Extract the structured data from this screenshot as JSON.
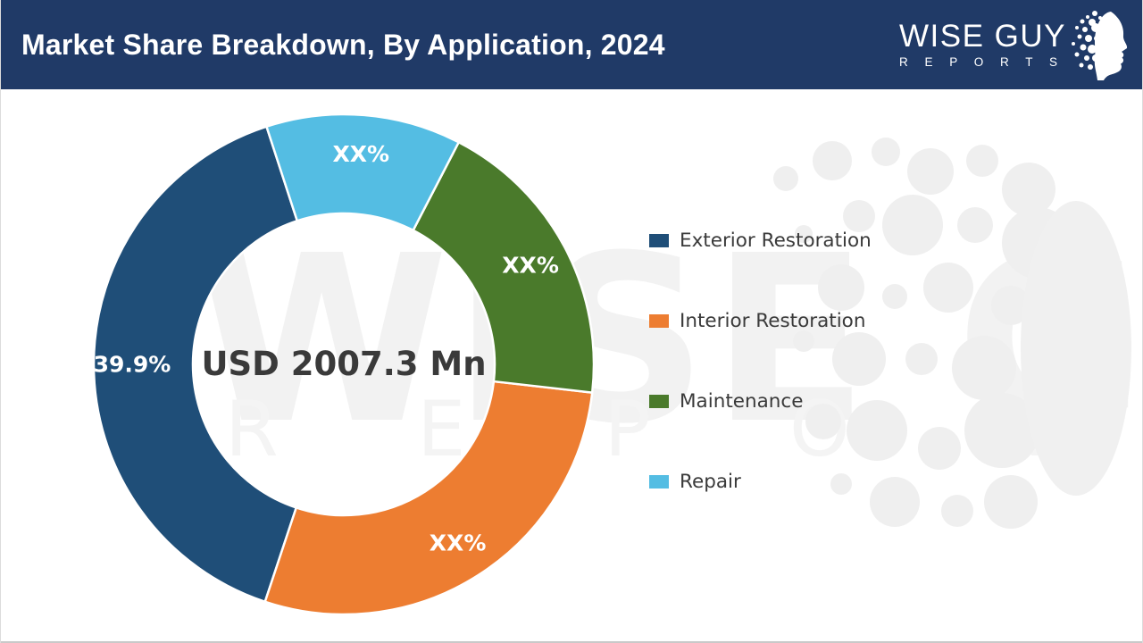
{
  "header": {
    "title": "Market Share Breakdown, By Application, 2024",
    "logo_line1": "WISE GUY",
    "logo_line2": "R E P O R T S"
  },
  "colors": {
    "header_bg": "#203a67",
    "exterior_restoration": "#1f4e78",
    "interior_restoration": "#ed7d31",
    "maintenance": "#4a7a2b",
    "repair": "#54bde3",
    "center_text": "#3a3a3a",
    "slice_label_text": "#ffffff",
    "watermark": "#f2f2f2",
    "bottom_line": "#c9c9c9"
  },
  "chart_data": {
    "type": "pie",
    "subtype": "donut",
    "title": "Market Share Breakdown, By Application, 2024",
    "center_label": "USD 2007.3 Mn",
    "categories": [
      "Exterior Restoration",
      "Interior Restoration",
      "Maintenance",
      "Repair"
    ],
    "values": [
      39.9,
      28.3,
      19.2,
      12.6
    ],
    "value_labels": [
      "39.9%",
      "XX%",
      "XX%",
      "XX%"
    ],
    "colors": [
      "#1f4e78",
      "#ed7d31",
      "#4a7a2b",
      "#54bde3"
    ],
    "start_angle_deg": 108,
    "direction": "counterclockwise",
    "donut_hole_ratio": 0.6,
    "legend_position": "right"
  },
  "watermark": {
    "line1": "WISE GUY",
    "line2": "R E P O R T S"
  }
}
